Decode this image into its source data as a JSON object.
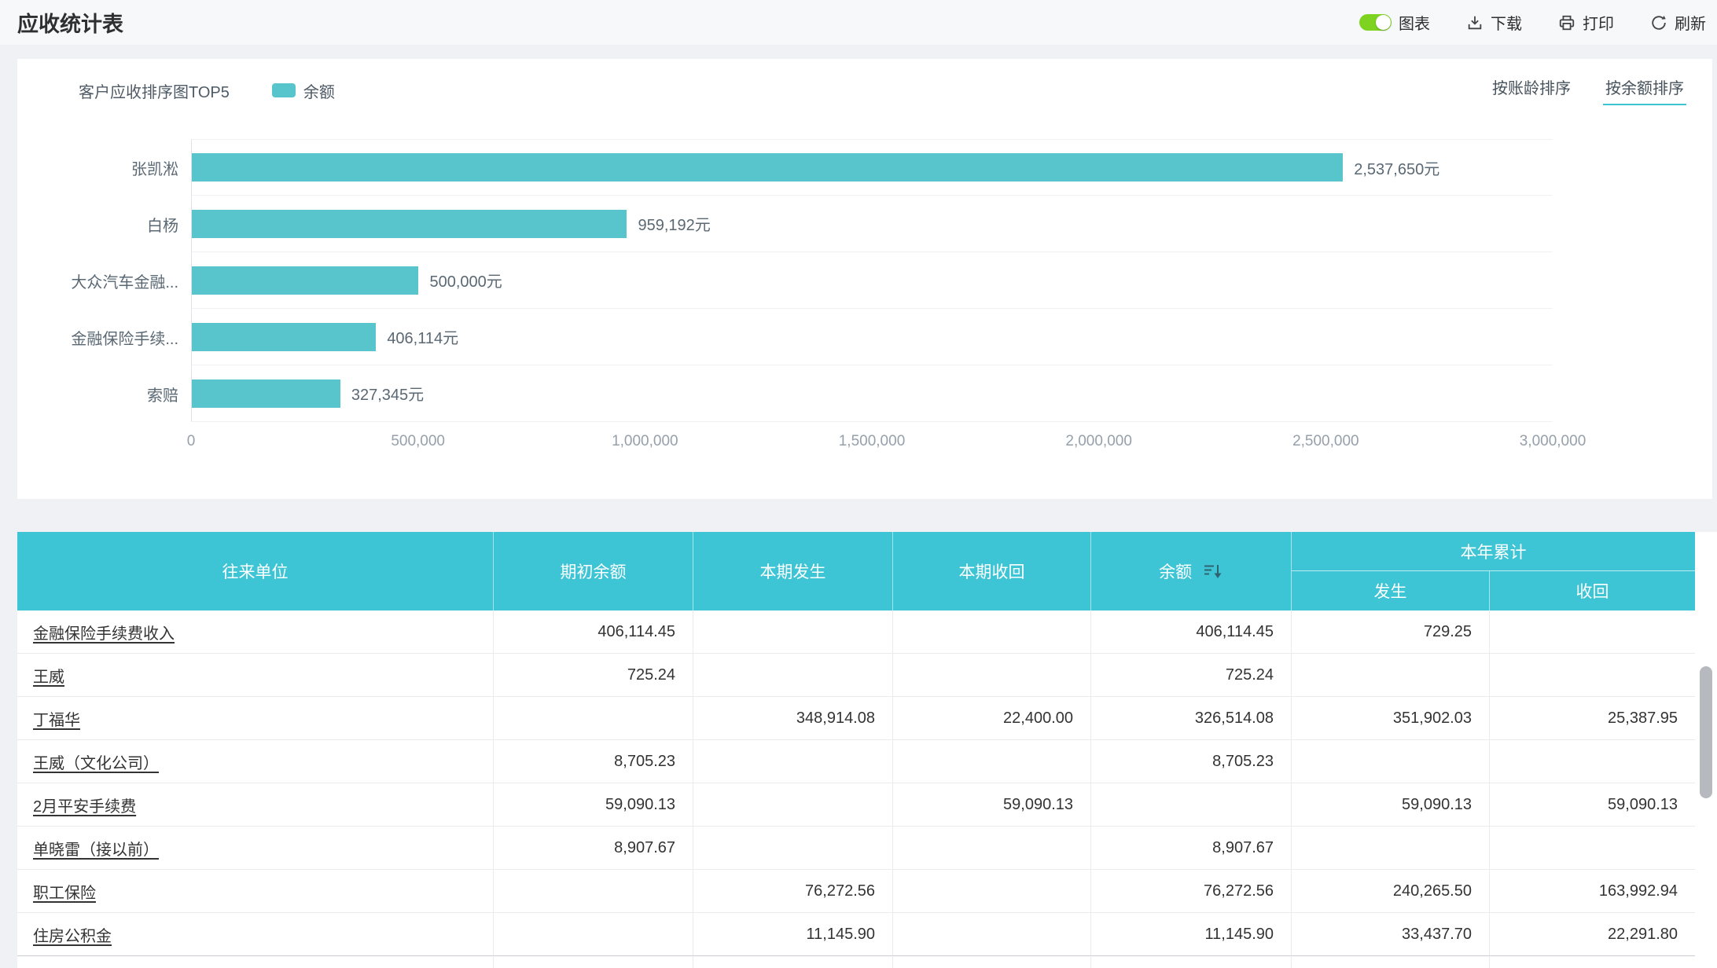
{
  "page": {
    "title": "应收统计表"
  },
  "toolbar": {
    "chart_toggle_label": "图表",
    "chart_toggle_on": true,
    "download_label": "下载",
    "print_label": "打印",
    "refresh_label": "刷新"
  },
  "chart_panel": {
    "title": "客户应收排序图TOP5",
    "legend_label": "余额",
    "sort_tabs": [
      {
        "label": "按账龄排序",
        "active": false
      },
      {
        "label": "按余额排序",
        "active": true
      }
    ]
  },
  "chart_data": {
    "type": "bar",
    "orientation": "horizontal",
    "title": "客户应收排序图TOP5",
    "legend": [
      "余额"
    ],
    "legend_position": "top-left",
    "categories": [
      "张凯淞",
      "白杨",
      "大众汽车金融...",
      "金融保险手续...",
      "索赔"
    ],
    "values": [
      2537650,
      959192,
      500000,
      406114,
      327345
    ],
    "value_labels": [
      "2,537,650元",
      "959,192元",
      "500,000元",
      "406,114元",
      "327,345元"
    ],
    "xlim": [
      0,
      3000000
    ],
    "x_ticks": [
      0,
      500000,
      1000000,
      1500000,
      2000000,
      2500000,
      3000000
    ],
    "x_tick_labels": [
      "0",
      "500,000",
      "1,000,000",
      "1,500,000",
      "2,000,000",
      "2,500,000",
      "3,000,000"
    ],
    "grid": "category-separators"
  },
  "table": {
    "sorted_by": "余额",
    "header": {
      "unit": "往来单位",
      "opening_balance": "期初余额",
      "period_incurred": "本期发生",
      "period_received": "本期收回",
      "balance": "余额",
      "ytd": "本年累计",
      "ytd_incurred": "发生",
      "ytd_received": "收回"
    },
    "rows": [
      {
        "unit": "金融保险手续费收入",
        "opening": "406,114.45",
        "period_incurred": "",
        "period_received": "",
        "balance": "406,114.45",
        "ytd_incurred": "729.25",
        "ytd_received": ""
      },
      {
        "unit": "王威",
        "opening": "725.24",
        "period_incurred": "",
        "period_received": "",
        "balance": "725.24",
        "ytd_incurred": "",
        "ytd_received": ""
      },
      {
        "unit": "丁福华",
        "opening": "",
        "period_incurred": "348,914.08",
        "period_received": "22,400.00",
        "balance": "326,514.08",
        "ytd_incurred": "351,902.03",
        "ytd_received": "25,387.95"
      },
      {
        "unit": "王威（文化公司）",
        "opening": "8,705.23",
        "period_incurred": "",
        "period_received": "",
        "balance": "8,705.23",
        "ytd_incurred": "",
        "ytd_received": ""
      },
      {
        "unit": "2月平安手续费",
        "opening": "59,090.13",
        "period_incurred": "",
        "period_received": "59,090.13",
        "balance": "",
        "ytd_incurred": "59,090.13",
        "ytd_received": "59,090.13"
      },
      {
        "unit": "单晓雷（接以前）",
        "opening": "8,907.67",
        "period_incurred": "",
        "period_received": "",
        "balance": "8,907.67",
        "ytd_incurred": "",
        "ytd_received": ""
      },
      {
        "unit": "职工保险",
        "opening": "",
        "period_incurred": "76,272.56",
        "period_received": "",
        "balance": "76,272.56",
        "ytd_incurred": "240,265.50",
        "ytd_received": "163,992.94"
      },
      {
        "unit": "住房公积金",
        "opening": "",
        "period_incurred": "11,145.90",
        "period_received": "",
        "balance": "11,145.90",
        "ytd_incurred": "33,437.70",
        "ytd_received": "22,291.80"
      }
    ]
  },
  "colors": {
    "accent_cyan": "#3dc5d6",
    "bar_teal": "#58c5cc",
    "toggle_green": "#7ed321",
    "table_header_bg": "#3dc5d6"
  }
}
